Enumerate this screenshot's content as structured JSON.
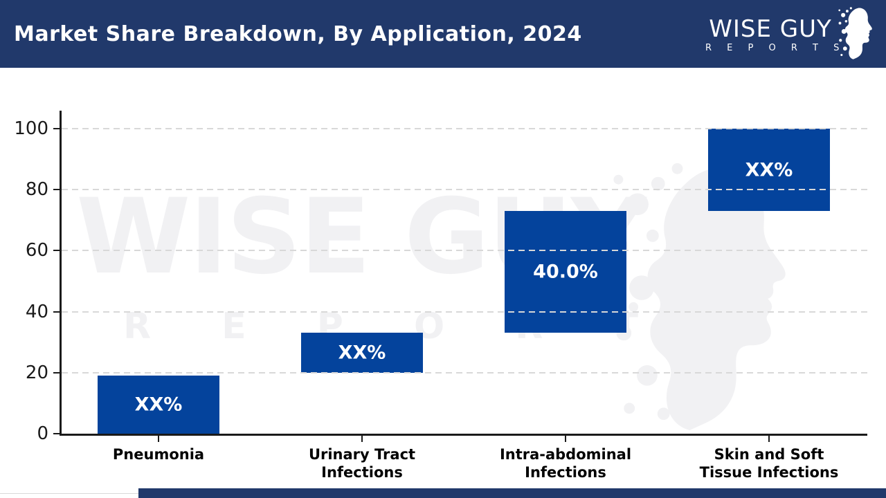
{
  "header": {
    "title": "Market Share Breakdown, By Application, 2024",
    "logo": {
      "name_line": "WISE GUY",
      "sub_line": "R E P O R T S"
    }
  },
  "watermark": {
    "name_line": "WISE GUY",
    "sub_line": "R E P O R T S"
  },
  "chart_data": {
    "type": "bar",
    "subtype": "floating-waterfall",
    "title": "Market Share Breakdown, By Application, 2024",
    "categories": [
      "Pneumonia",
      "Urinary Tract Infections",
      "Intra-abdominal Infections",
      "Skin and Soft Tissue Infections"
    ],
    "segments": [
      {
        "category": "Pneumonia",
        "start": 0,
        "end": 19,
        "label": "XX%"
      },
      {
        "category": "Urinary Tract Infections",
        "start": 20,
        "end": 33,
        "label": "XX%"
      },
      {
        "category": "Intra-abdominal Infections",
        "start": 33,
        "end": 73,
        "label": "40.0%"
      },
      {
        "category": "Skin and Soft Tissue Infections",
        "start": 73,
        "end": 100,
        "label": "XX%"
      }
    ],
    "y_ticks": [
      0,
      20,
      40,
      60,
      80,
      100
    ],
    "ylim": [
      0,
      105
    ],
    "xlabel": "",
    "ylabel": "",
    "grid": "horizontal-dashed",
    "legend": "none",
    "bar_color": "#04439C",
    "bar_label_color": "#ffffff"
  },
  "colors": {
    "header_bg": "#21396B",
    "footer_bg": "#21396B",
    "grid": "#D8D8D8",
    "axis": "#1a1a1a",
    "watermark": "#F1F1F3"
  }
}
